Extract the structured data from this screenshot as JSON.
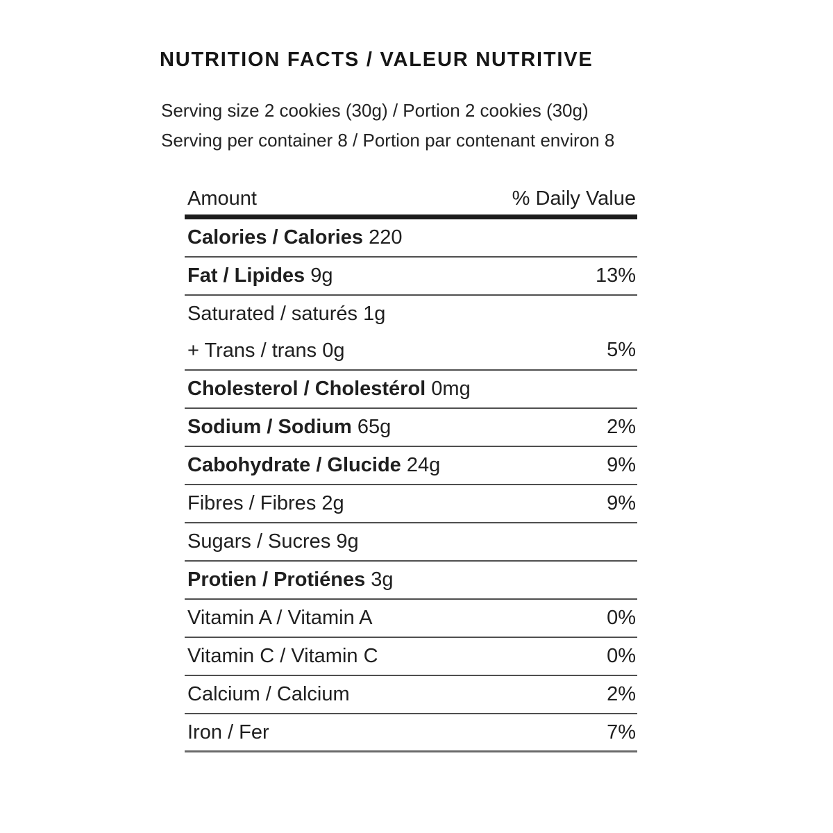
{
  "label": {
    "title": "NUTRITION FACTS / VALEUR NUTRITIVE",
    "serving_size_line": "Serving size 2 cookies (30g) / Portion 2 cookies (30g)",
    "servings_per_container_line": "Serving per container 8 / Portion par contenant environ 8",
    "table": {
      "amount_header": "Amount",
      "daily_value_header": "% Daily Value",
      "rows": [
        {
          "name": "Calories / Calories",
          "amount": "220",
          "percent": ""
        },
        {
          "name": "Fat / Lipides",
          "amount": "9g",
          "percent": "13%"
        },
        {
          "name": "Saturated / saturés",
          "amount": "1g",
          "name2": "+ Trans / trans",
          "amount2": "0g",
          "percent": "5%"
        },
        {
          "name": "Cholesterol / Cholestérol",
          "amount": "0mg",
          "percent": ""
        },
        {
          "name": "Sodium / Sodium",
          "amount": "65g",
          "percent": "2%"
        },
        {
          "name": "Cabohydrate / Glucide",
          "amount": "24g",
          "percent": "9%"
        },
        {
          "name": "Fibres / Fibres",
          "amount": "2g",
          "percent": "9%"
        },
        {
          "name": "Sugars / Sucres",
          "amount": "9g",
          "percent": ""
        },
        {
          "name": "Protien / Protiénes",
          "amount": "3g",
          "percent": ""
        },
        {
          "name": "Vitamin A / Vitamin A",
          "amount": "",
          "percent": "0%"
        },
        {
          "name": "Vitamin C / Vitamin C",
          "amount": "",
          "percent": "0%"
        },
        {
          "name": "Calcium / Calcium",
          "amount": "",
          "percent": "2%"
        },
        {
          "name": "Iron / Fer",
          "amount": "",
          "percent": "7%"
        }
      ]
    },
    "colors": {
      "text": "#1f1f1f",
      "header_rule": "#1c1c1c",
      "row_rule": "#4f4f4f",
      "bottom_rule": "#6a6a6a",
      "background": "#ffffff"
    }
  }
}
